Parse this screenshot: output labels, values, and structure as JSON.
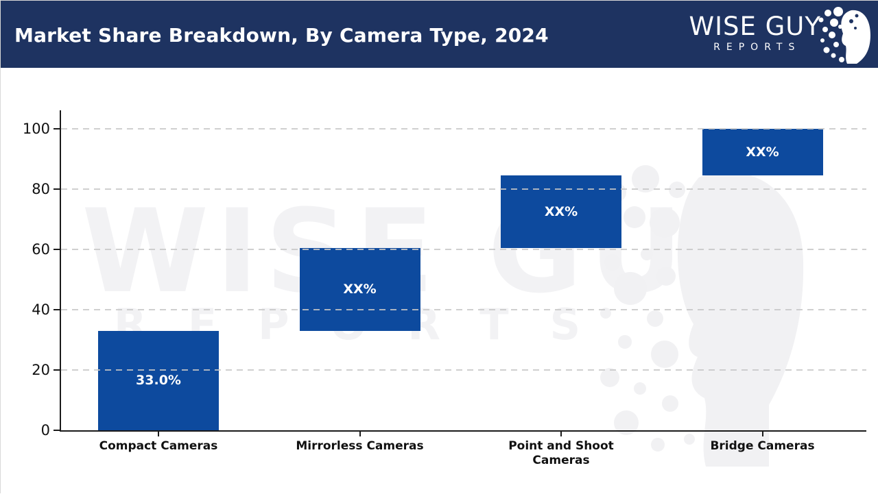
{
  "header": {
    "title": "Market Share Breakdown, By Camera Type, 2024",
    "logo": {
      "line1": "WISE GUY",
      "line2": "REPORTS"
    }
  },
  "watermark": {
    "line1": "WISE GUY",
    "line2": "REPORTS"
  },
  "colors": {
    "header_bg": "#1e3361",
    "bar": "#0d4a9e",
    "grid": "#c7c7c7",
    "axis": "#1a1a1a",
    "bar_label_text": "#ffffff",
    "tick_text": "#111111",
    "watermark": "#f2f2f4"
  },
  "chart_data": {
    "type": "bar",
    "subtype": "waterfall",
    "title": "Market Share Breakdown, By Camera Type, 2024",
    "categories": [
      "Compact Cameras",
      "Mirrorless Cameras",
      "Point and Shoot Cameras",
      "Bridge Cameras"
    ],
    "segments": [
      {
        "category": "Compact Cameras",
        "from": 0,
        "to": 33,
        "label": "33.0%"
      },
      {
        "category": "Mirrorless Cameras",
        "from": 33,
        "to": 60.5,
        "label": "XX%"
      },
      {
        "category": "Point and Shoot Cameras",
        "from": 60.5,
        "to": 84.5,
        "label": "XX%"
      },
      {
        "category": "Bridge Cameras",
        "from": 84.5,
        "to": 100,
        "label": "XX%"
      }
    ],
    "yticks": [
      0,
      20,
      40,
      60,
      80,
      100
    ],
    "ylim": [
      0,
      100
    ],
    "xlabel": "",
    "ylabel": "",
    "grid": "dashed-horizontal",
    "legend": "none"
  }
}
